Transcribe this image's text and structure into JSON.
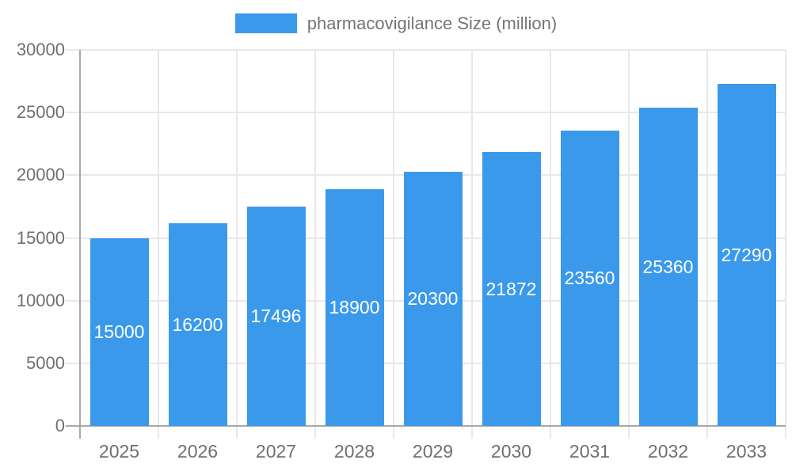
{
  "legend": {
    "label": "pharmacovigilance Size (million)"
  },
  "colors": {
    "bar": "#3B99EC",
    "axis": "#A8A8A8",
    "grid": "#E8E8E8",
    "tick_label": "#6F6F6F",
    "bar_label": "#FFFFFF",
    "legend_text": "#757575",
    "background": "#FFFFFF"
  },
  "chart_data": {
    "type": "bar",
    "title": "",
    "xlabel": "",
    "ylabel": "",
    "categories": [
      "2025",
      "2026",
      "2027",
      "2028",
      "2029",
      "2030",
      "2031",
      "2032",
      "2033"
    ],
    "values": [
      15000,
      16200,
      17496,
      18900,
      20300,
      21872,
      23560,
      25360,
      27290
    ],
    "series_name": "pharmacovigilance Size (million)",
    "ylim": [
      0,
      30000
    ],
    "yticks": [
      0,
      5000,
      10000,
      15000,
      20000,
      25000,
      30000
    ],
    "grid": true,
    "legend_position": "top-center",
    "value_label_position": "inside-center"
  }
}
